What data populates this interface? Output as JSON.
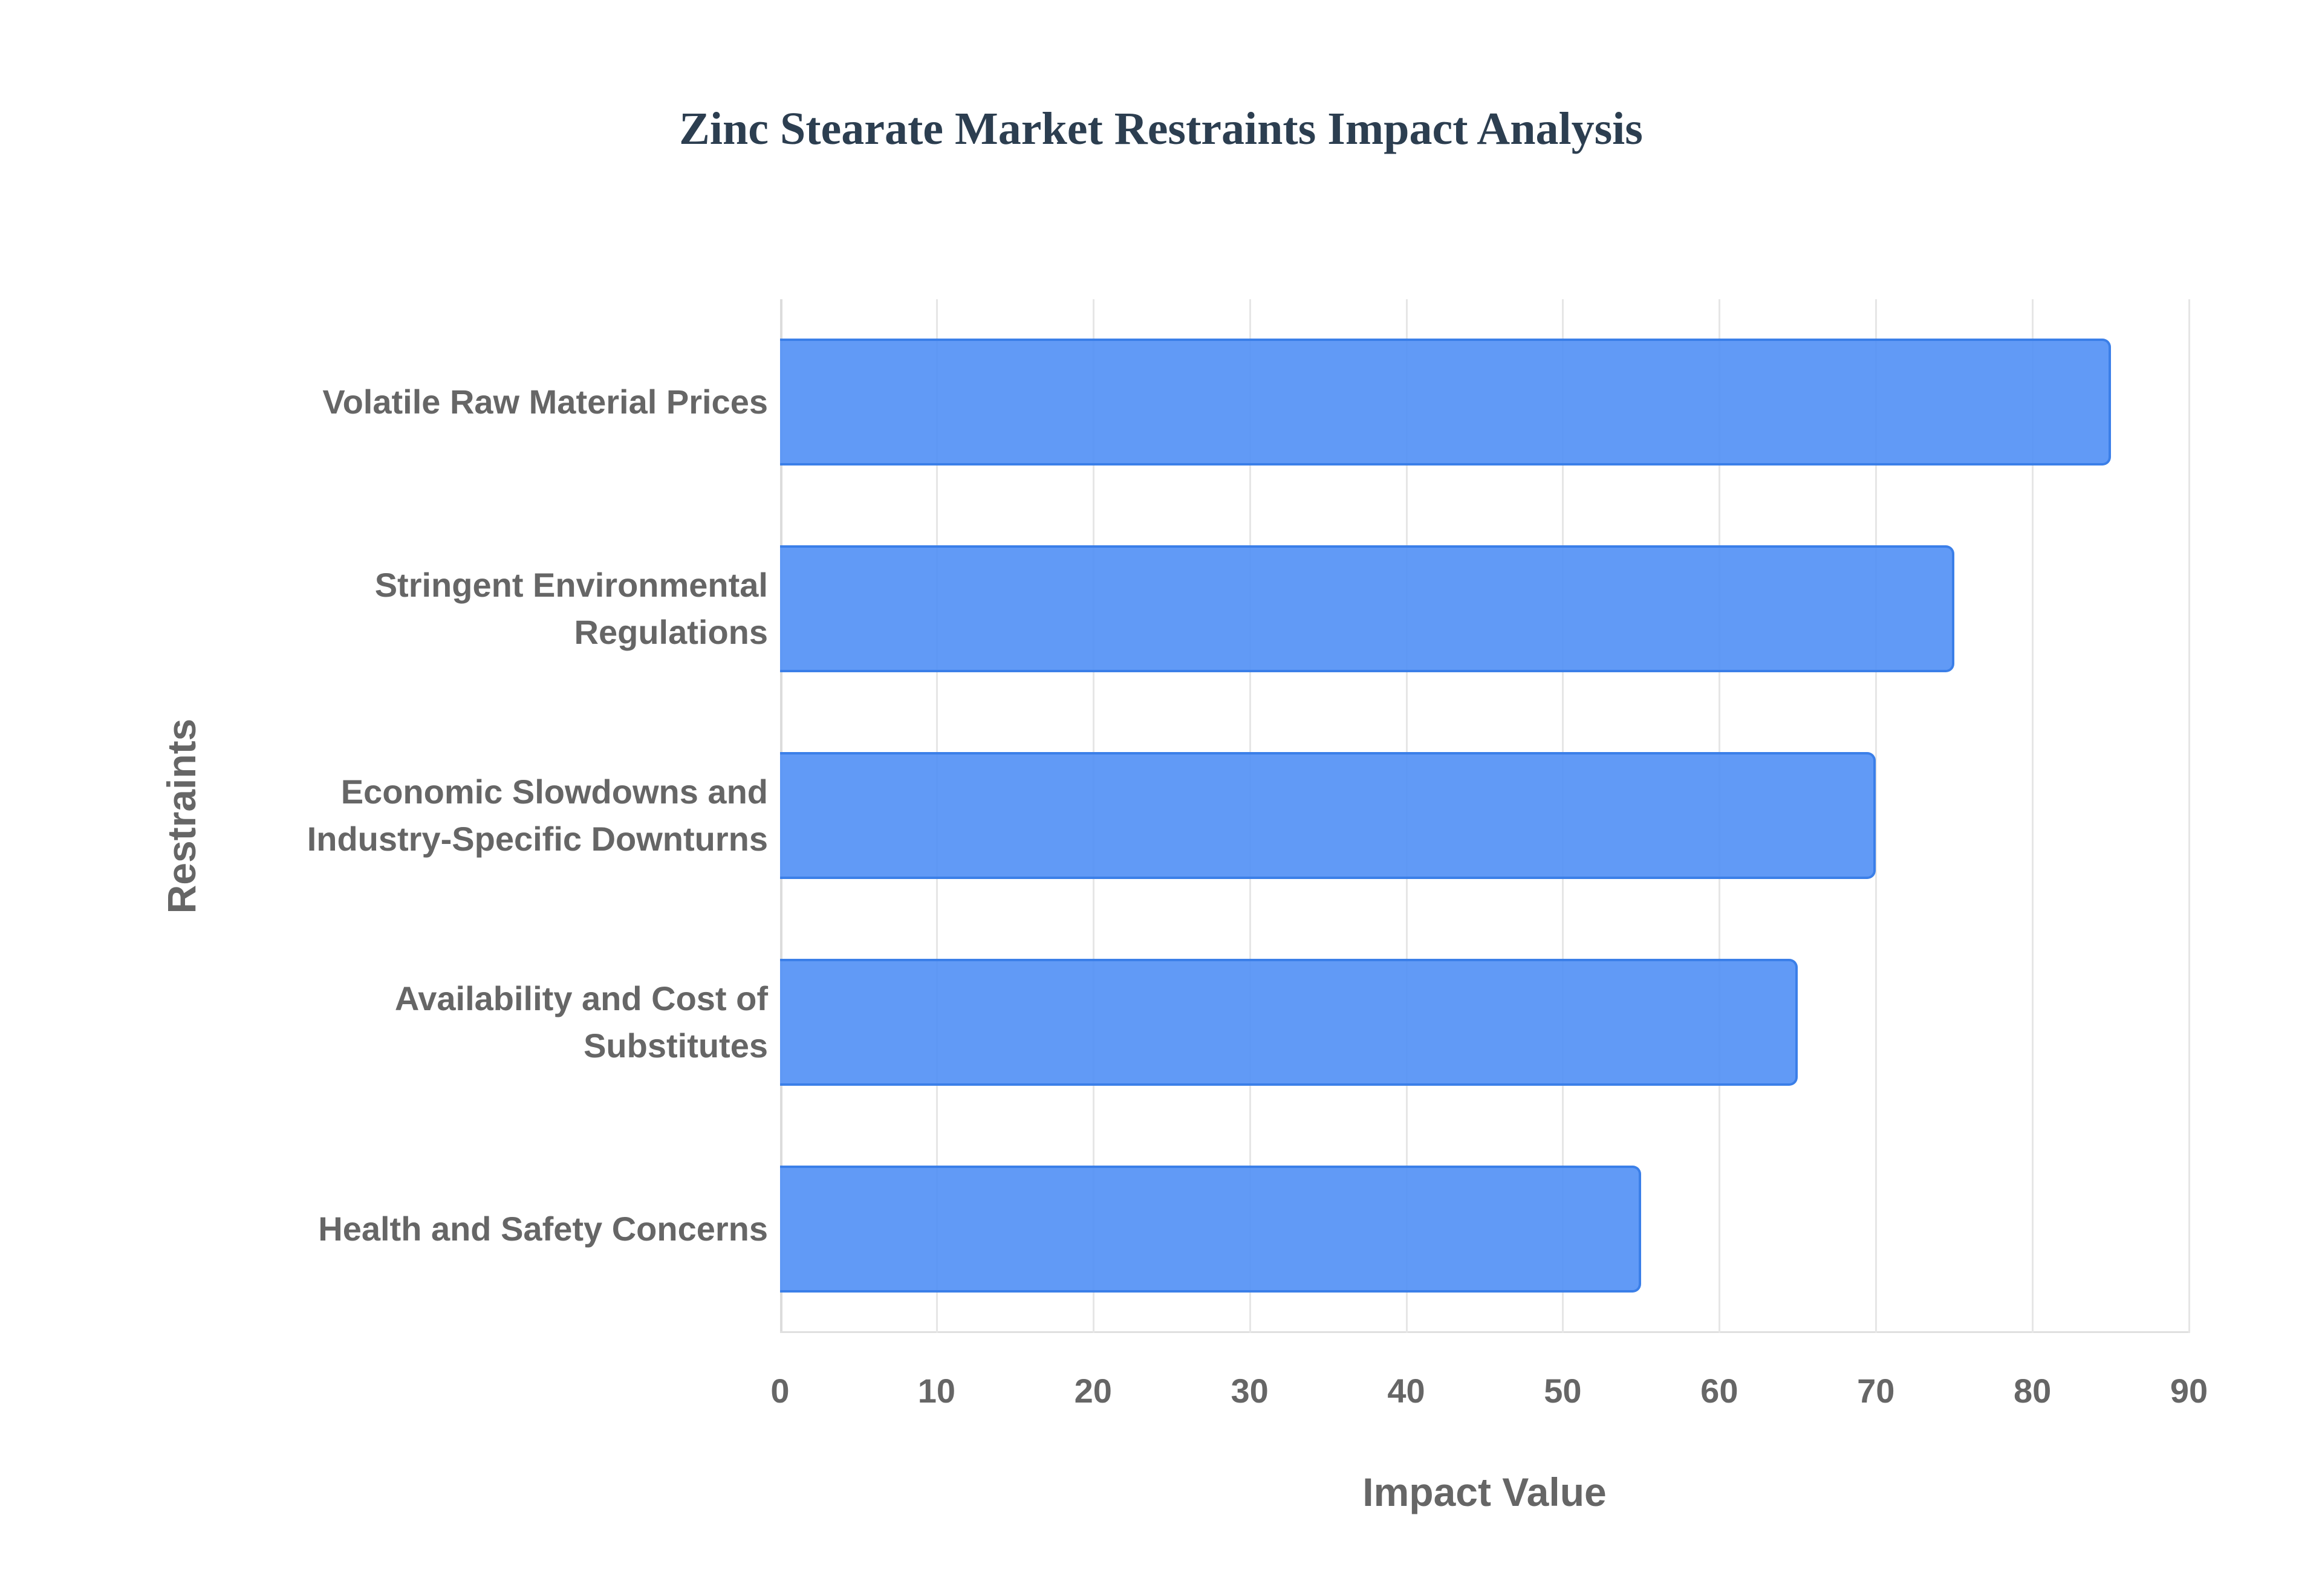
{
  "title": "Zinc Stearate Market Restraints Impact Analysis",
  "chart_data": {
    "type": "bar",
    "orientation": "horizontal",
    "title": "Zinc Stearate Market Restraints Impact Analysis",
    "xlabel": "Impact Value",
    "ylabel": "Restraints",
    "categories": [
      "Volatile Raw Material Prices",
      "Stringent Environmental Regulations",
      "Economic Slowdowns and Industry-Specific Downturns",
      "Availability and Cost of Substitutes",
      "Health and Safety Concerns"
    ],
    "values": [
      85,
      75,
      70,
      65,
      55
    ],
    "xlim": [
      0,
      90
    ],
    "xticks": [
      "0",
      "10",
      "20",
      "30",
      "40",
      "50",
      "60",
      "70",
      "80",
      "90"
    ],
    "grid": true,
    "legend": false,
    "bar_color": "#5491f5",
    "bar_border_color": "#3b7fe8"
  },
  "ytick_lines": [
    [
      "Volatile Raw Material Prices"
    ],
    [
      "Stringent Environmental",
      "Regulations"
    ],
    [
      "Economic Slowdowns and",
      "Industry-Specific Downturns"
    ],
    [
      "Availability and Cost of",
      "Substitutes"
    ],
    [
      "Health and Safety Concerns"
    ]
  ]
}
